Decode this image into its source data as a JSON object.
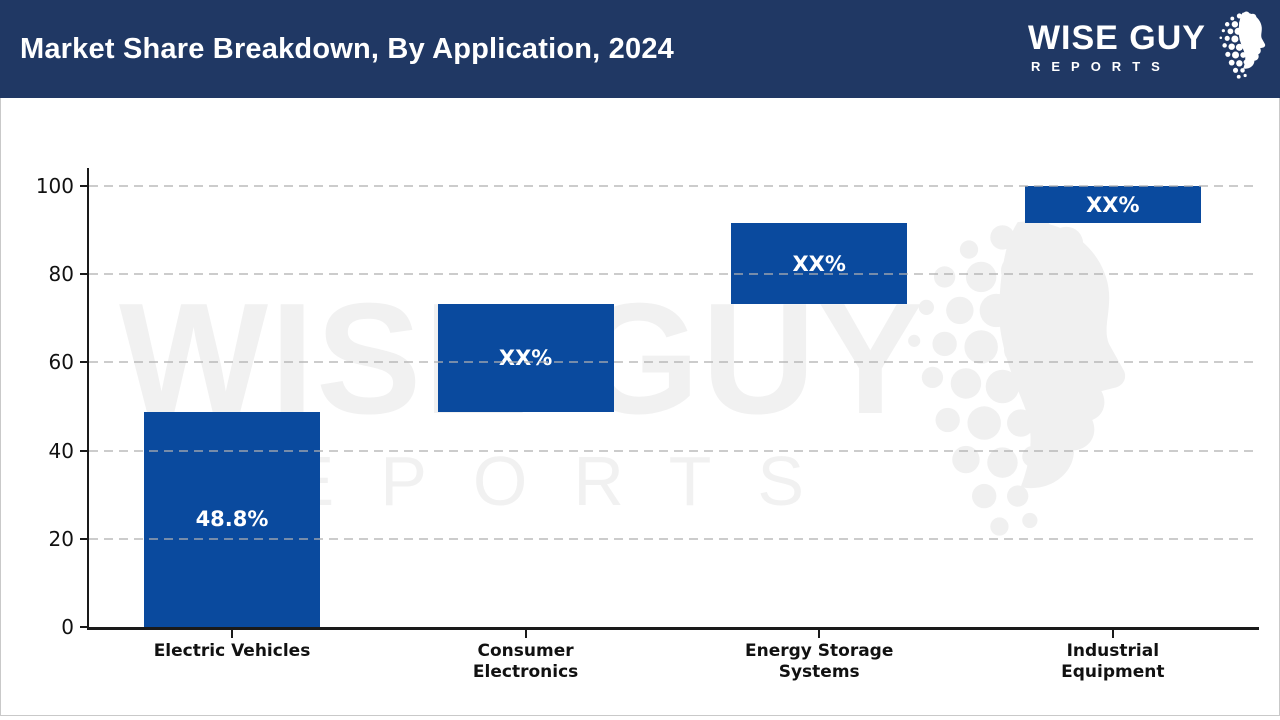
{
  "header": {
    "title": "Market Share Breakdown, By Application, 2024",
    "logo": {
      "line1": "WISE GUY",
      "line2": "REPORTS"
    }
  },
  "watermark": {
    "line1": "WISE GUY",
    "line2": "REPORTS"
  },
  "colors": {
    "header_bg": "#203864",
    "bar": "#0a4a9e",
    "bar_label": "#ffffff",
    "axis": "#1a1a1a",
    "gridline": "#b0b0b0",
    "watermark": "#f1f1f1",
    "frame_border": "#c9c9c9"
  },
  "chart_data": {
    "type": "bar",
    "subtype": "waterfall-stacked-segments",
    "title": "Market Share Breakdown, By Application, 2024",
    "categories": [
      "Electric Vehicles",
      "Consumer Electronics",
      "Energy Storage Systems",
      "Industrial Equipment"
    ],
    "category_lines": [
      [
        "Electric Vehicles"
      ],
      [
        "Consumer",
        "Electronics"
      ],
      [
        "Energy Storage",
        "Systems"
      ],
      [
        "Industrial",
        "Equipment"
      ]
    ],
    "segments": [
      {
        "label": "48.8%",
        "start": 0,
        "end": 48.8
      },
      {
        "label": "XX%",
        "start": 48.8,
        "end": 73.2
      },
      {
        "label": "XX%",
        "start": 73.2,
        "end": 91.6
      },
      {
        "label": "XX%",
        "start": 91.6,
        "end": 100
      }
    ],
    "xlabel": "",
    "ylabel": "",
    "ylim": [
      0,
      104
    ],
    "yticks": [
      0,
      20,
      40,
      60,
      80,
      100
    ],
    "grid": "dashed horizontal, drawn over bars",
    "legend": "none",
    "bar_color": "#0a4a9e"
  }
}
